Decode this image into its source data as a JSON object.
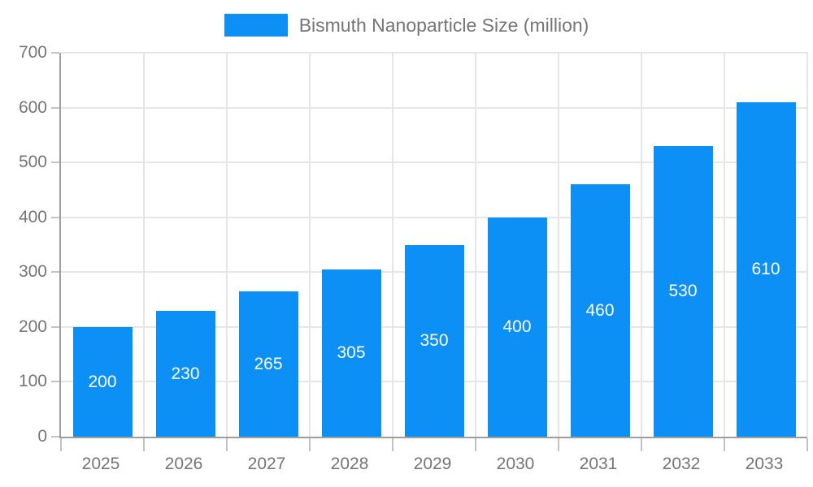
{
  "legend": {
    "label": "Bismuth Nanoparticle Size (million)"
  },
  "colors": {
    "bar": "#0d90f5",
    "bar_value_label": "#ffffff",
    "axis_line": "#9e9e9e",
    "gridline": "#e6e6e6",
    "tick_mark": "#c2c2c2",
    "axis_text": "#757575",
    "background": "#ffffff"
  },
  "chart_data": {
    "type": "bar",
    "title": "Bismuth Nanoparticle Size (million)",
    "categories": [
      "2025",
      "2026",
      "2027",
      "2028",
      "2029",
      "2030",
      "2031",
      "2032",
      "2033"
    ],
    "values": [
      200,
      230,
      265,
      305,
      350,
      400,
      460,
      530,
      610
    ],
    "xlabel": "",
    "ylabel": "",
    "ylim": [
      0,
      700
    ],
    "y_ticks": [
      0,
      100,
      200,
      300,
      400,
      500,
      600,
      700
    ],
    "grid": true,
    "legend_position": "top-center",
    "bar_labels_inside": true
  }
}
